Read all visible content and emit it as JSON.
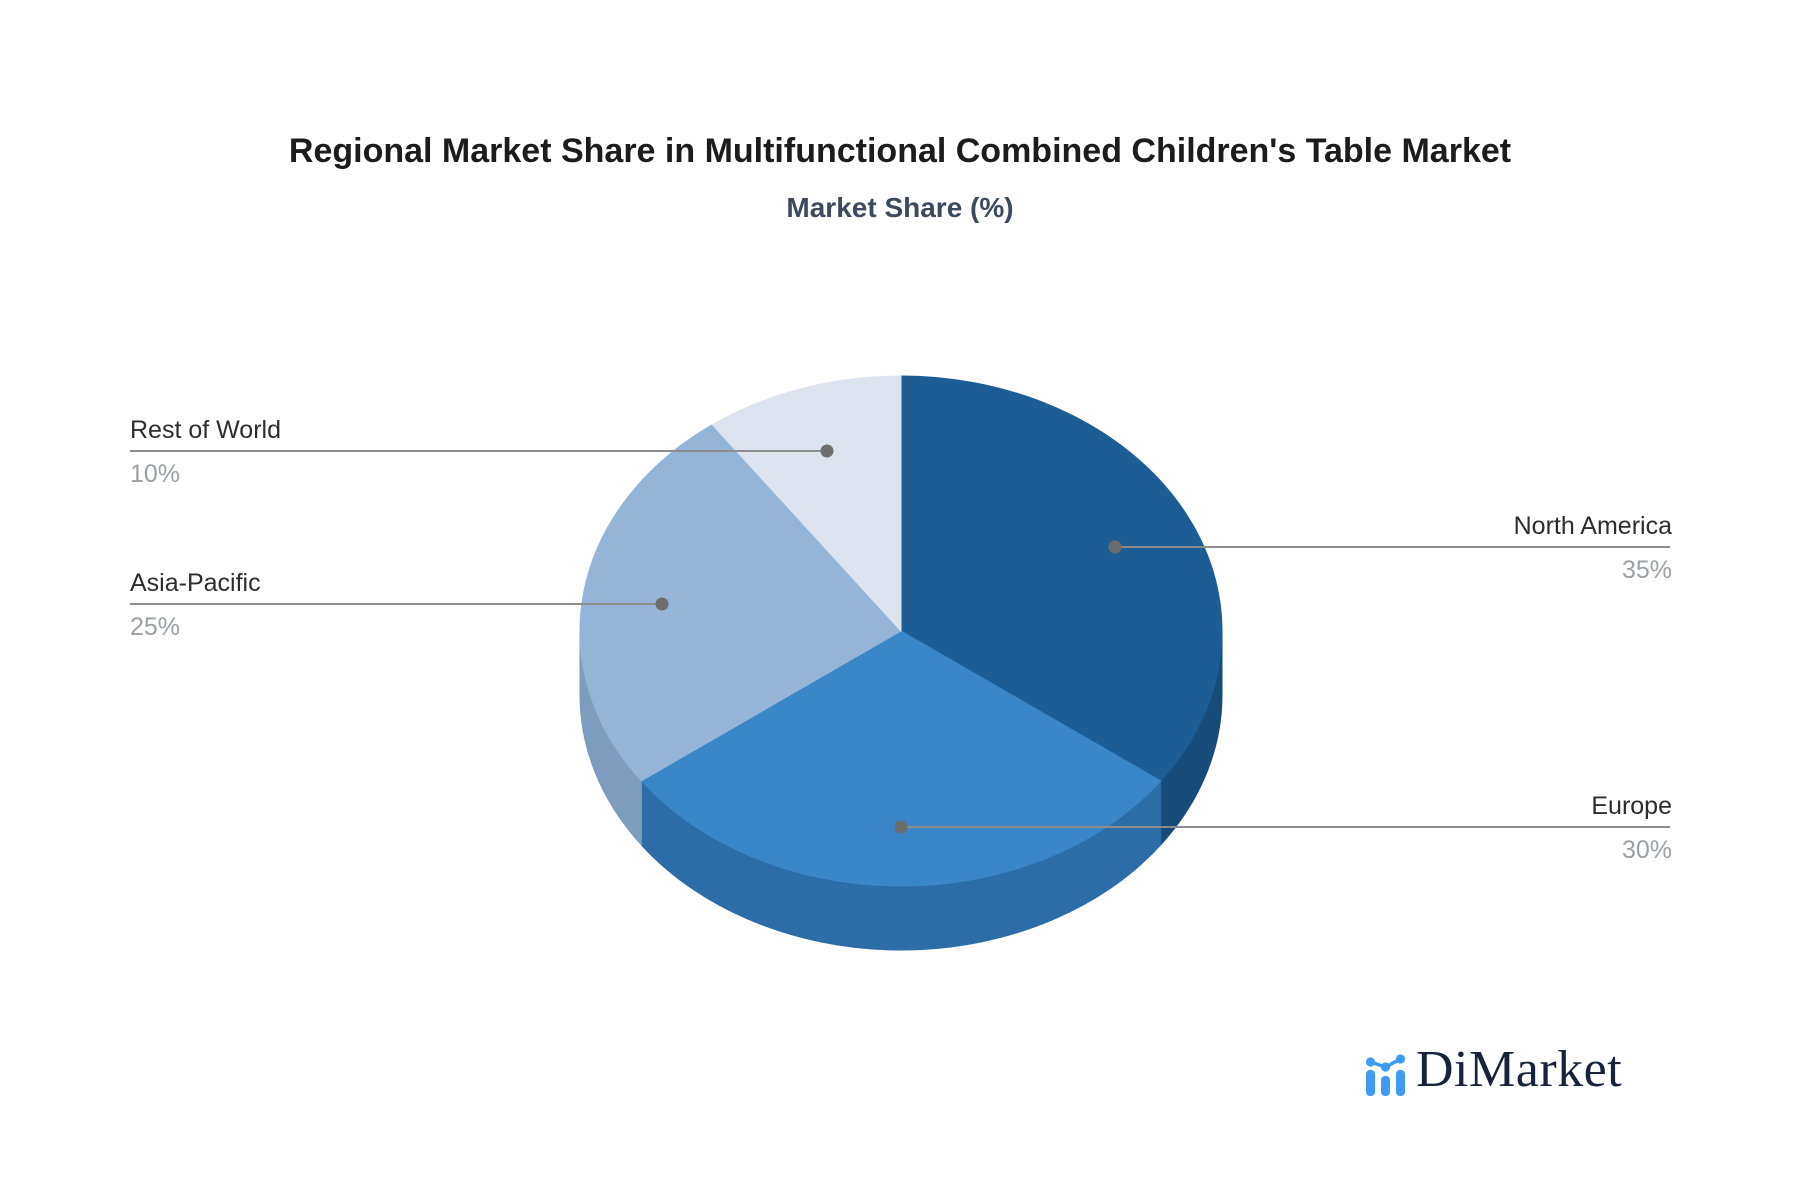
{
  "title": "Regional Market Share in Multifunctional Combined Children's Table Market",
  "subtitle": "Market Share (%)",
  "logo": {
    "text": "DiMarket",
    "icon": "bar-line-chart-icon",
    "icon_color": "#3e9bf4",
    "text_color": "#16233a"
  },
  "leader_style": {
    "line_color": "#8c8c8c",
    "dot_color": "#6d6d6d"
  },
  "chart_data": {
    "type": "pie",
    "title": "Regional Market Share in Multifunctional Combined Children's Table Market",
    "subtitle": "Market Share (%)",
    "unit": "%",
    "effect": "3d",
    "start_angle_deg": 0,
    "direction": "clockwise",
    "legend": "none",
    "labels_style": "outside-with-leader-lines",
    "slices": [
      {
        "label": "North America",
        "value": 35,
        "display": "35%",
        "color": "#1d5d96",
        "side_color": "#174b7a",
        "label_side": "right"
      },
      {
        "label": "Europe",
        "value": 30,
        "display": "30%",
        "color": "#3a86c7",
        "side_color": "#2d6da7",
        "label_side": "right"
      },
      {
        "label": "Asia-Pacific",
        "value": 25,
        "display": "25%",
        "color": "#94b5d8",
        "side_color": "#7e9dbe",
        "label_side": "left"
      },
      {
        "label": "Rest of World",
        "value": 10,
        "display": "10%",
        "color": "#dde4ef",
        "side_color": "#b9c5d6",
        "label_side": "left"
      }
    ]
  }
}
